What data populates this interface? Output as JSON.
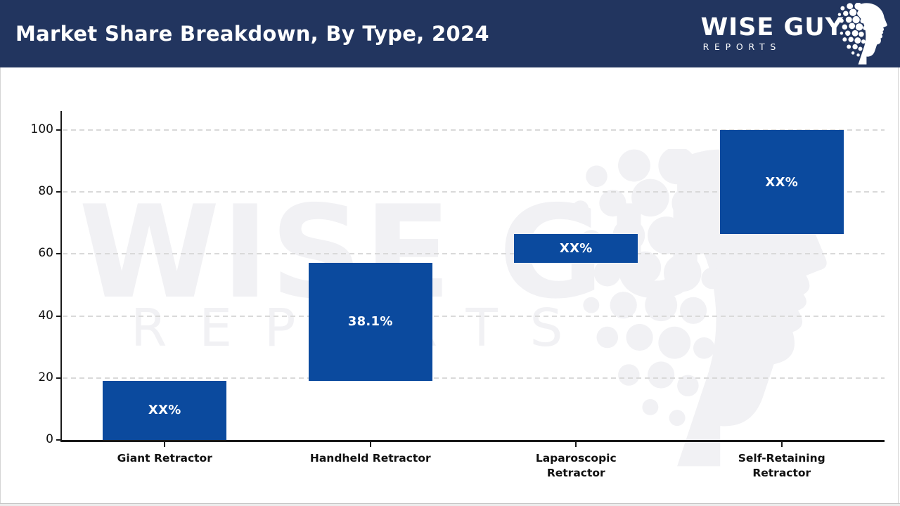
{
  "header": {
    "title": "Market Share Breakdown, By Type, 2024",
    "logo": {
      "line1": "WISE GUY",
      "line2": "REPORTS"
    }
  },
  "watermark": {
    "line1": "WISE GUY",
    "line2": "REPORTS"
  },
  "colors": {
    "header_bg": "#22355f",
    "bar_fill": "#0b4a9e",
    "bar_label_text": "#ffffff",
    "gridline": "#d9d9d9",
    "axis": "#1a1a1a",
    "watermark": "#f1f1f4"
  },
  "chart_data": {
    "type": "bar",
    "subtype": "waterfall",
    "title": "Market Share Breakdown, By Type, 2024",
    "categories": [
      "Giant Retractor",
      "Handheld Retractor",
      "Laparoscopic Retractor",
      "Self-Retaining Retractor"
    ],
    "segments": [
      {
        "category": "Giant Retractor",
        "label_lines": [
          "Giant Retractor"
        ],
        "start": 0,
        "end": 19.1,
        "value_label": "XX%"
      },
      {
        "category": "Handheld Retractor",
        "label_lines": [
          "Handheld Retractor"
        ],
        "start": 19.1,
        "end": 57.2,
        "value_label": "38.1%"
      },
      {
        "category": "Laparoscopic Retractor",
        "label_lines": [
          "Laparoscopic",
          "Retractor"
        ],
        "start": 57.2,
        "end": 66.4,
        "value_label": "XX%"
      },
      {
        "category": "Self-Retaining Retractor",
        "label_lines": [
          "Self-Retaining",
          "Retractor"
        ],
        "start": 66.4,
        "end": 100,
        "value_label": "XX%"
      }
    ],
    "yticks": [
      0,
      20,
      40,
      60,
      80,
      100
    ],
    "ylim": [
      0,
      100
    ],
    "xlabel": "",
    "ylabel": "",
    "grid": "horizontal-dashed",
    "legend": "none"
  }
}
